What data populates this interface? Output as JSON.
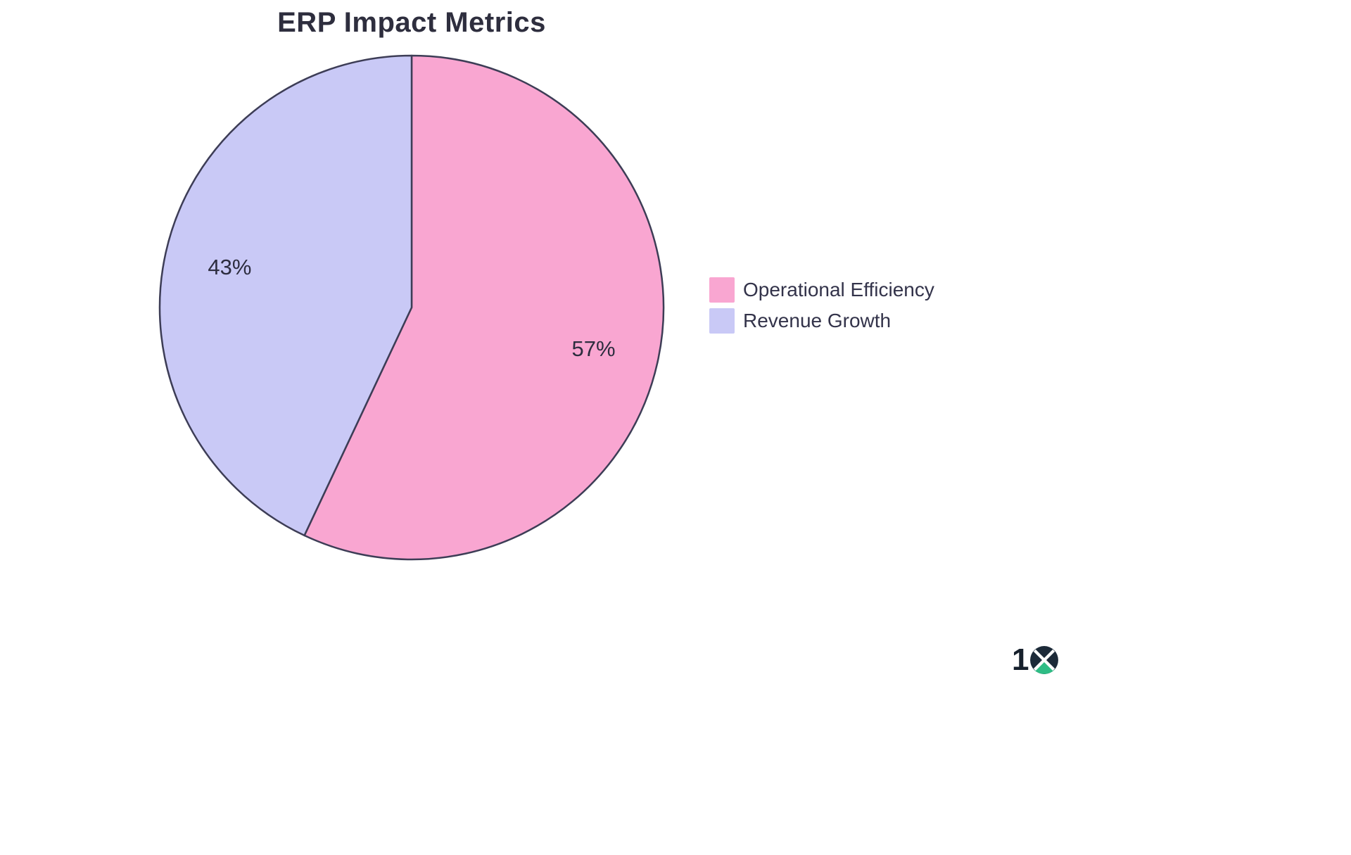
{
  "page": {
    "background": "#ffffff"
  },
  "chart_data": {
    "type": "pie",
    "title": "ERP Impact Metrics",
    "labels": [
      "Operational Efficiency",
      "Revenue Growth"
    ],
    "values": [
      57,
      43
    ],
    "value_labels": [
      "57%",
      "43%"
    ],
    "colors": [
      "#F9A6D1",
      "#C9C9F6"
    ],
    "stroke_color": "#3d3d56",
    "label_color": "#2d2d3f",
    "start_angle_deg": 0,
    "direction": "clockwise",
    "legend_position": "right"
  },
  "legend": {
    "items": [
      {
        "label": "Operational Efficiency",
        "color": "#F9A6D1"
      },
      {
        "label": "Revenue Growth",
        "color": "#C9C9F6"
      }
    ]
  },
  "watermark": {
    "text": "1",
    "icon": "x-circle-icon",
    "icon_dark_color": "#1c2a38",
    "icon_green_color": "#2EBD85"
  }
}
